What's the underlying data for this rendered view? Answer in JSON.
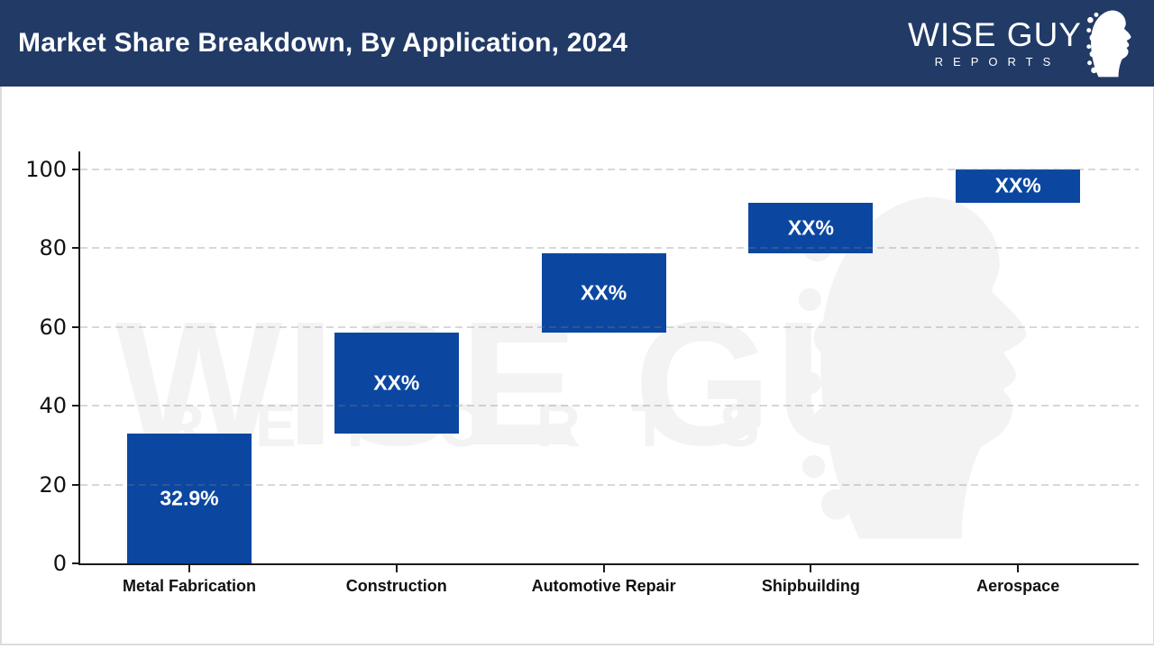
{
  "header": {
    "title": "Market Share Breakdown, By Application, 2024",
    "logo": {
      "line1": "WISE GUY",
      "line2": "REPORTS"
    }
  },
  "watermark": {
    "line1": "WISE GUY",
    "line2": "REPORTS"
  },
  "colors": {
    "header_bg": "#213a66",
    "bar": "#0b47a0",
    "bar_label": "#ffffff",
    "gridline": "#e0e0e0",
    "watermark": "#f3f3f3",
    "axis": "#1a1a1a"
  },
  "chart_data": {
    "type": "bar",
    "subtype": "waterfall",
    "title": "Market Share Breakdown, By Application, 2024",
    "categories": [
      "Metal Fabrication",
      "Construction",
      "Automotive Repair",
      "Shipbuilding",
      "Aerospace"
    ],
    "segments": [
      {
        "category": "Metal Fabrication",
        "start": 0,
        "end": 32.9,
        "label": "32.9%"
      },
      {
        "category": "Construction",
        "start": 32.9,
        "end": 58.5,
        "label": "XX%"
      },
      {
        "category": "Automotive Repair",
        "start": 58.5,
        "end": 78.6,
        "label": "XX%"
      },
      {
        "category": "Shipbuilding",
        "start": 78.6,
        "end": 91.4,
        "label": "XX%"
      },
      {
        "category": "Aerospace",
        "start": 91.4,
        "end": 100,
        "label": "XX%"
      }
    ],
    "xlabel": "",
    "ylabel": "",
    "yticks": [
      0,
      20,
      40,
      60,
      80,
      100
    ],
    "ylim": [
      0,
      104
    ],
    "grid": "dashed-horizontal",
    "legend": "none"
  }
}
